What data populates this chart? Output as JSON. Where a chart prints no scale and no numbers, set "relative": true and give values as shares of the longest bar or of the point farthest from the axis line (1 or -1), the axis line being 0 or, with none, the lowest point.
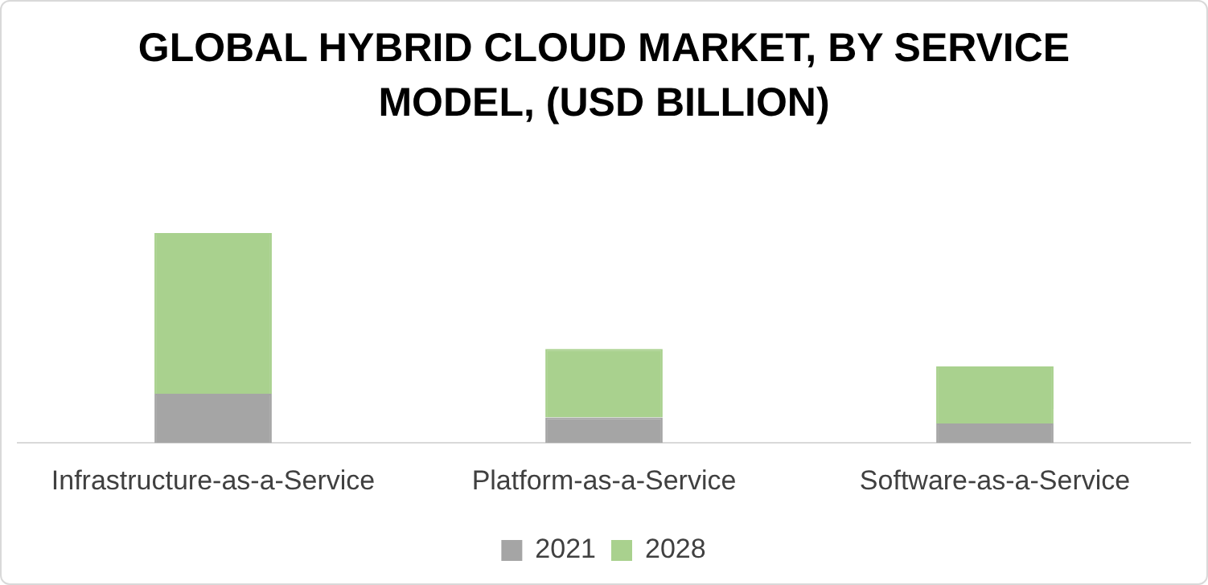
{
  "chart_data": {
    "type": "bar",
    "title": "GLOBAL HYBRID CLOUD MARKET, BY SERVICE MODEL, (USD BILLION)",
    "categories": [
      "Infrastructure-as-a-Service",
      "Platform-as-a-Service",
      "Software-as-a-Service"
    ],
    "stacked": true,
    "relative": true,
    "legend": "bottom",
    "grid": false,
    "series": [
      {
        "name": "2021",
        "color": "#a5a5a5",
        "values": [
          0.234,
          0.121,
          0.093
        ]
      },
      {
        "name": "2028",
        "color": "#a9d18e",
        "values": [
          0.766,
          0.327,
          0.271
        ]
      }
    ]
  }
}
